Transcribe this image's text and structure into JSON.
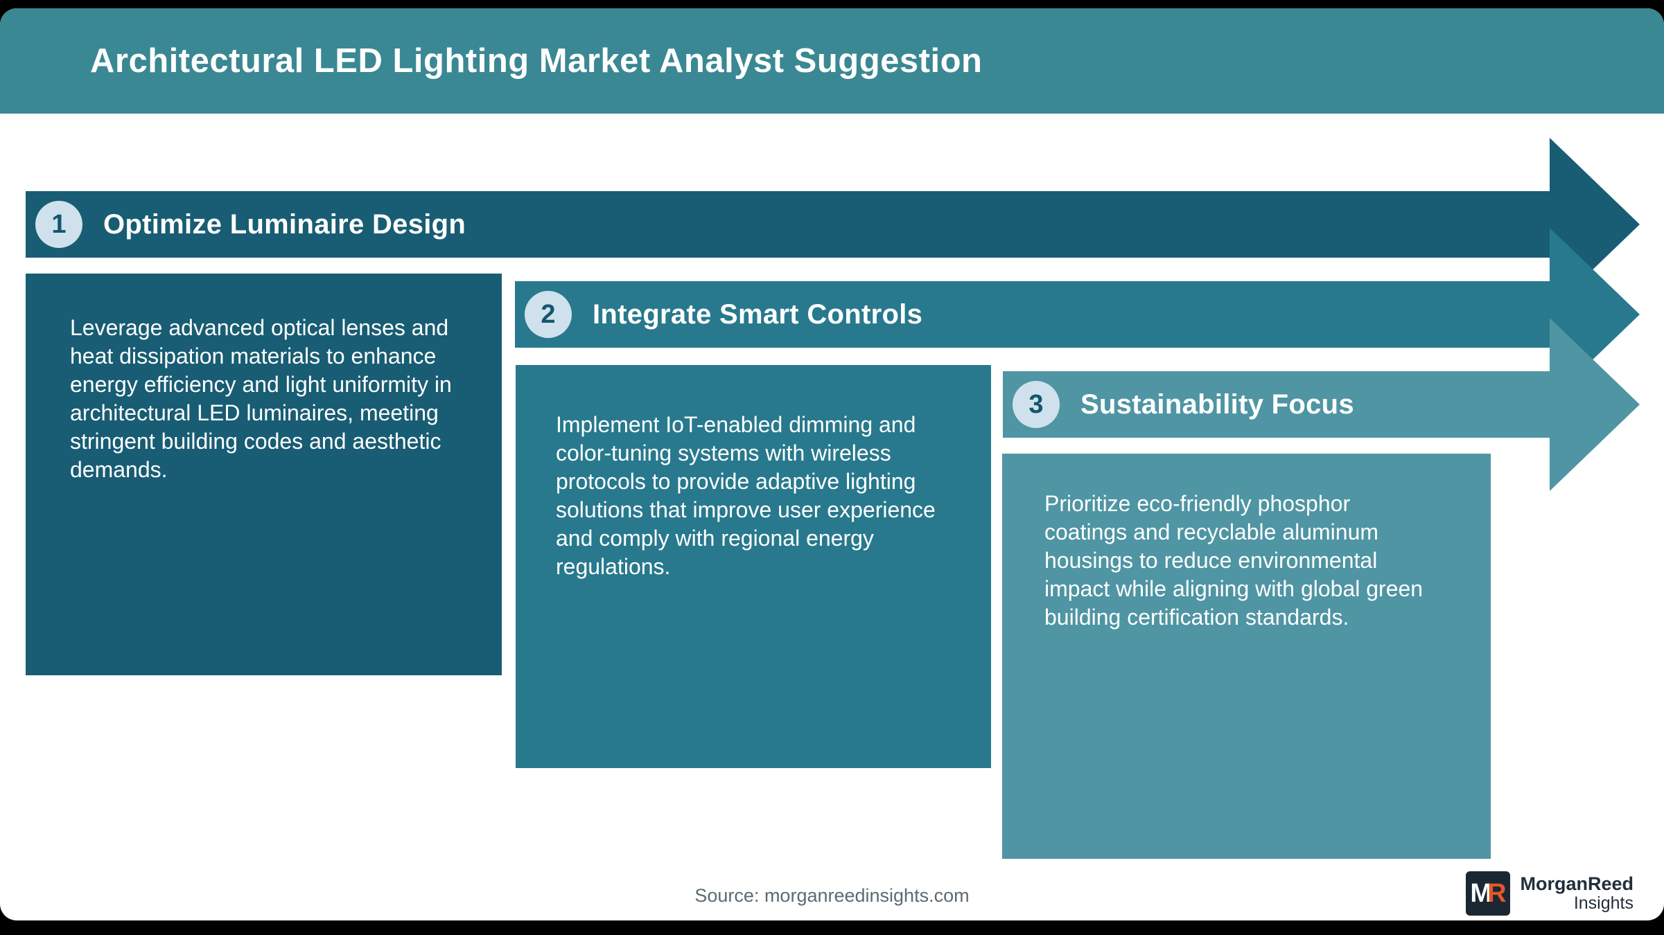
{
  "page": {
    "title": "Architectural LED Lighting Market Analyst Suggestion",
    "source": "Source: morganreedinsights.com",
    "header_bg": "#3a8893",
    "background": "#000000",
    "card_bg": "#ffffff"
  },
  "steps": [
    {
      "number": "1",
      "title": "Optimize Luminaire Design",
      "description": "Leverage advanced optical lenses and heat dissipation materials to enhance energy efficiency and light uniformity in architectural LED luminaires, meeting stringent building codes and aesthetic demands.",
      "color": "#185d73"
    },
    {
      "number": "2",
      "title": "Integrate Smart Controls",
      "description": "Implement IoT-enabled dimming and color-tuning systems with wireless protocols to provide adaptive lighting solutions that improve user experience and comply with regional energy regulations.",
      "color": "#28798d"
    },
    {
      "number": "3",
      "title": "Sustainability Focus",
      "description": "Prioritize eco-friendly phosphor coatings and recyclable aluminum housings to reduce environmental impact while aligning with global green building certification standards.",
      "color": "#4f95a3"
    }
  ],
  "badge": {
    "bg": "#cfe1ec",
    "text_color": "#14576d"
  },
  "logo": {
    "monogram_m": "M",
    "monogram_r": "R",
    "name": "MorganReed",
    "tagline": "Insights"
  }
}
